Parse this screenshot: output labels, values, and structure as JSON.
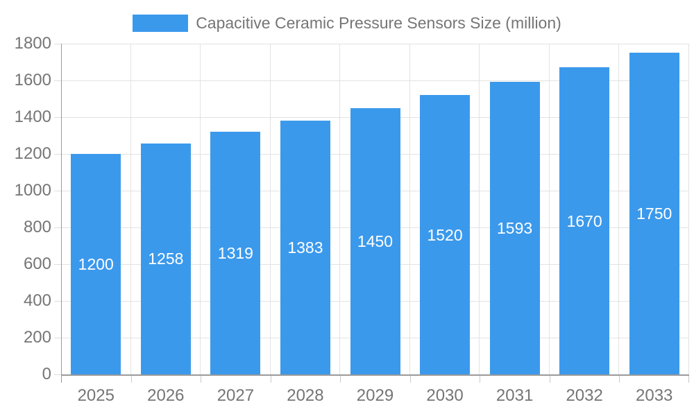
{
  "chart_data": {
    "type": "bar",
    "title": "Capacitive Ceramic Pressure Sensors Size (million)",
    "categories": [
      "2025",
      "2026",
      "2027",
      "2028",
      "2029",
      "2030",
      "2031",
      "2032",
      "2033"
    ],
    "values": [
      1200,
      1258,
      1319,
      1383,
      1450,
      1520,
      1593,
      1670,
      1750
    ],
    "xlabel": "",
    "ylabel": "",
    "ylim": [
      0,
      1800
    ],
    "yticks": [
      0,
      200,
      400,
      600,
      800,
      1000,
      1200,
      1400,
      1600,
      1800
    ],
    "grid": "on",
    "legend_position": "top",
    "bar_labels_visible": true,
    "colors": {
      "bar": "#3b99ec",
      "bar_label_text": "#ffffff",
      "axis_text": "#757575",
      "grid_line": "#e2e2e2",
      "axis_line": "#9a9a9a"
    }
  }
}
